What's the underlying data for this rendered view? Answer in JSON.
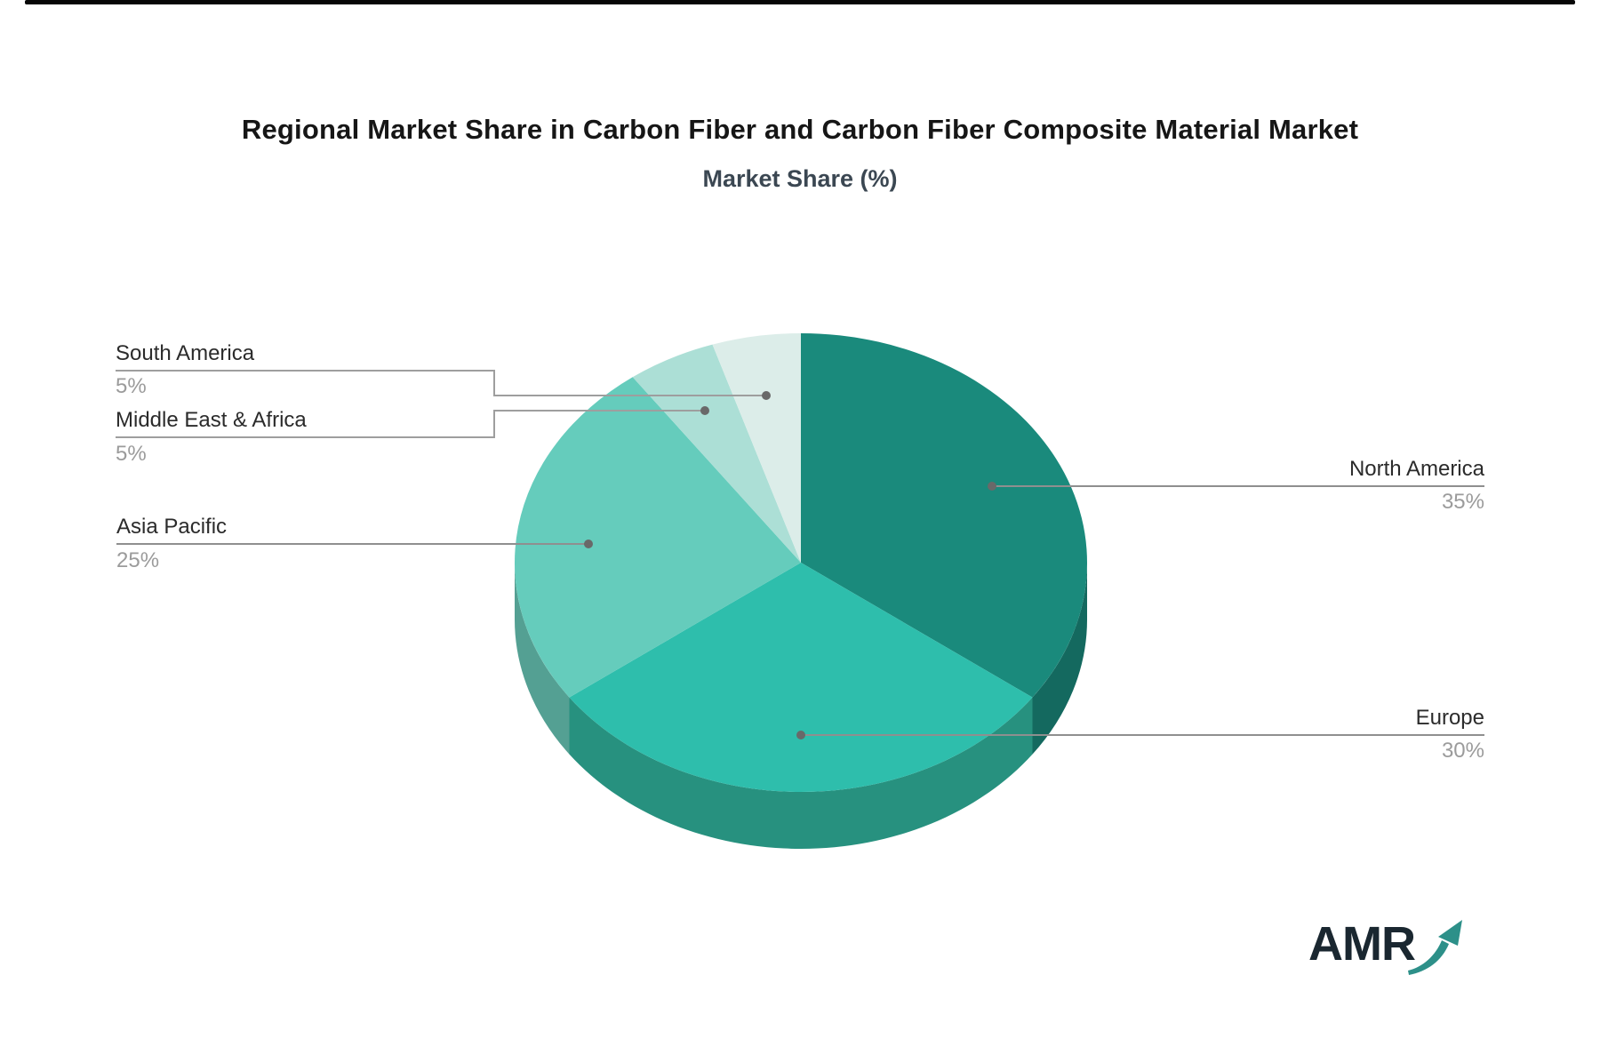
{
  "header": {
    "title": "Regional Market Share in Carbon Fiber and Carbon Fiber Composite Material Market",
    "subtitle": "Market Share (%)"
  },
  "chart_data": {
    "type": "pie",
    "title": "Regional Market Share in Carbon Fiber and Carbon Fiber Composite Material Market",
    "subtitle": "Market Share (%)",
    "unit": "%",
    "labels": [
      "North America",
      "Europe",
      "Asia Pacific",
      "Middle East & Africa",
      "South America"
    ],
    "values": [
      35,
      30,
      25,
      5,
      5
    ],
    "display_values": [
      "35%",
      "30%",
      "25%",
      "5%",
      "5%"
    ],
    "colors": [
      "#1A8A7C",
      "#2EBEAC",
      "#65CCBC",
      "#ACDFD6",
      "#DCEDE9"
    ],
    "side_colors": [
      "#14695F",
      "#27917F",
      "#54A093",
      "#8FC5BA",
      "#BBD9D2"
    ],
    "start_angle_deg": 0,
    "direction": "clockwise",
    "style": "3d",
    "legend_position": "callout-labels",
    "callout_line_color": "#8f8f8f",
    "callout_dot_color": "#696969",
    "label_color": "#2b2b2b",
    "value_color": "#9b9b9b"
  },
  "logo": {
    "text": "AMR"
  }
}
